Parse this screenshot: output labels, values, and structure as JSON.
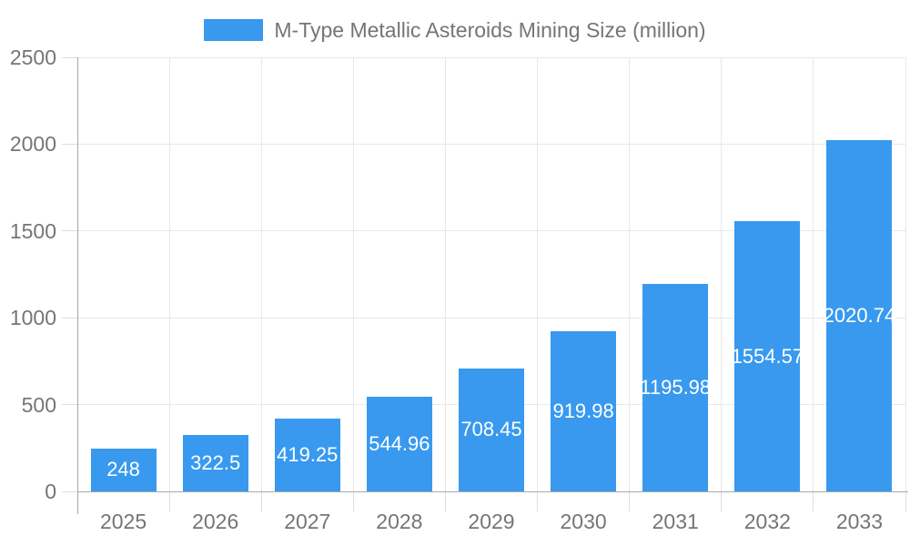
{
  "chart_data": {
    "type": "bar",
    "title": "M-Type Metallic Asteroids Mining Size (million)",
    "categories": [
      "2025",
      "2026",
      "2027",
      "2028",
      "2029",
      "2030",
      "2031",
      "2032",
      "2033"
    ],
    "values": [
      248,
      322.5,
      419.25,
      544.96,
      708.45,
      919.98,
      1195.98,
      1554.57,
      2020.74
    ],
    "value_labels": [
      "248",
      "322.5",
      "419.25",
      "544.96",
      "708.45",
      "919.98",
      "1195.98",
      "1554.57",
      "2020.74"
    ],
    "xlabel": "",
    "ylabel": "",
    "ylim": [
      0,
      2500
    ],
    "yticks": [
      0,
      500,
      1000,
      1500,
      2000,
      2500
    ],
    "grid": true,
    "legend_position": "top-center",
    "colors": {
      "bar": "#3899EF",
      "grid": "#E8E8E8",
      "axis": "#AAAAAA",
      "tick": "#DDDDDD",
      "text": "#757575",
      "bar_label": "#FFFFFF",
      "background": "#FFFFFF"
    }
  }
}
